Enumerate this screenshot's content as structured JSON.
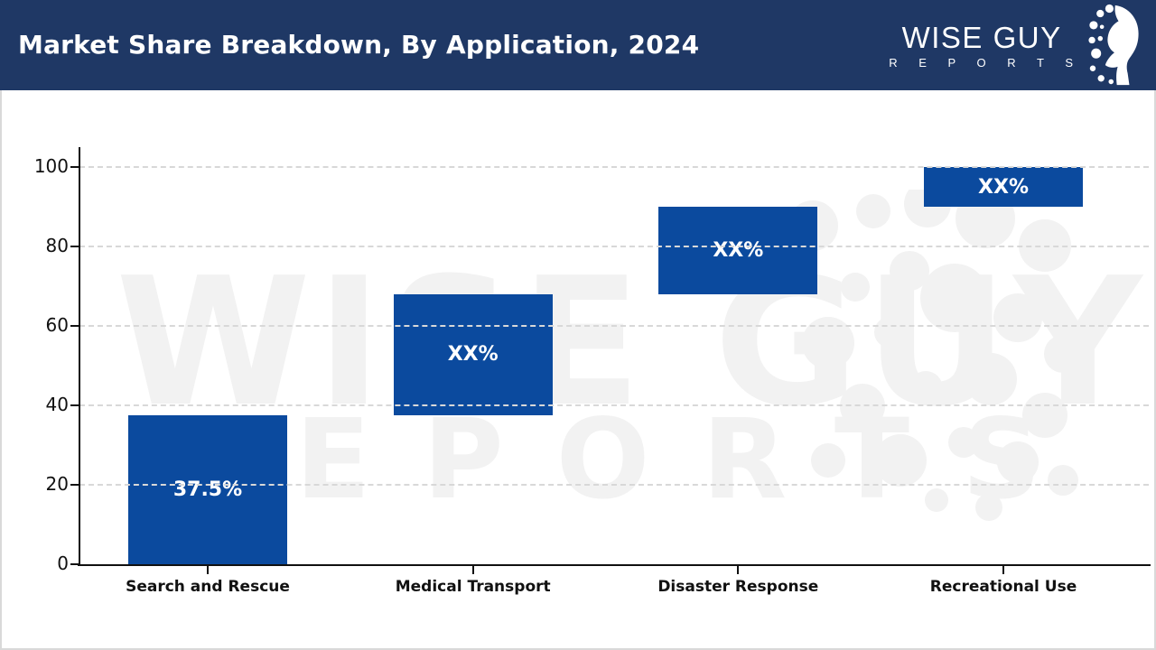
{
  "header": {
    "title": "Market Share Breakdown, By Application, 2024",
    "bg_color": "#1f3865",
    "logo": {
      "name": "WISE GUY",
      "tagline": "R E P O R T S"
    }
  },
  "watermark": {
    "line1": "WISE GUY",
    "line2": "REPORTS"
  },
  "chart_data": {
    "type": "bar",
    "subtype": "waterfall",
    "title": "Market Share Breakdown, By Application, 2024",
    "categories": [
      "Search and Rescue",
      "Medical Transport",
      "Disaster Response",
      "Recreational Use"
    ],
    "segments": [
      {
        "category": "Search and Rescue",
        "start": 0,
        "end": 37.5,
        "size": 37.5,
        "label": "37.5%"
      },
      {
        "category": "Medical Transport",
        "start": 37.5,
        "end": 68,
        "size": 30.5,
        "label": "XX%"
      },
      {
        "category": "Disaster Response",
        "start": 68,
        "end": 90,
        "size": 22,
        "label": "XX%"
      },
      {
        "category": "Recreational Use",
        "start": 90,
        "end": 100,
        "size": 10,
        "label": "XX%"
      }
    ],
    "yticks": [
      0,
      20,
      40,
      60,
      80,
      100
    ],
    "ylim": [
      0,
      105
    ],
    "xlabel": "",
    "ylabel": "",
    "bar_color": "#0b4a9e",
    "grid": "horizontal-dashed",
    "legend": "none"
  }
}
